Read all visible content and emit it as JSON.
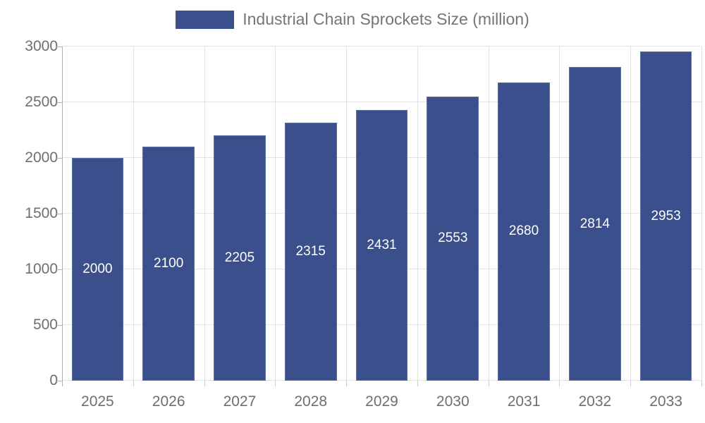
{
  "accent_color": "#3a4f8c",
  "legend": {
    "label": "Industrial Chain Sprockets Size (million)"
  },
  "chart_data": {
    "type": "bar",
    "title": "Industrial Chain Sprockets Size (million)",
    "categories": [
      "2025",
      "2026",
      "2027",
      "2028",
      "2029",
      "2030",
      "2031",
      "2032",
      "2033"
    ],
    "values": [
      2000,
      2100,
      2205,
      2315,
      2431,
      2553,
      2680,
      2814,
      2953
    ],
    "series_name": "Industrial Chain Sprockets Size (million)",
    "xlabel": "",
    "ylabel": "",
    "ylim": [
      0,
      3000
    ],
    "yticks": [
      0,
      500,
      1000,
      1500,
      2000,
      2500,
      3000
    ],
    "grid": true,
    "legend_position": "top-center",
    "bar_color": "#3a4f8c",
    "value_label_color": "#ffffff",
    "axis_label_color": "#6e6e6e"
  }
}
